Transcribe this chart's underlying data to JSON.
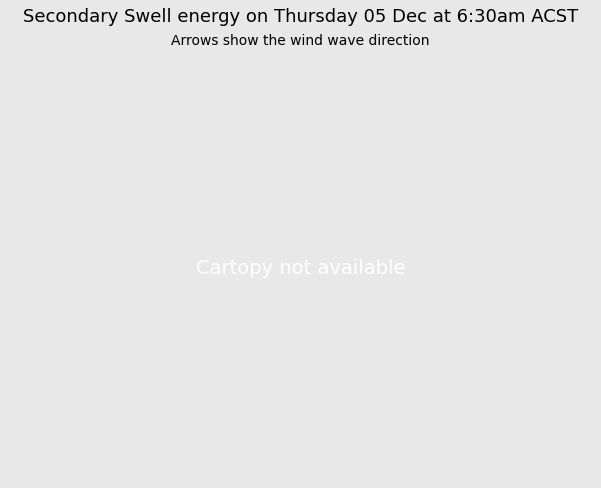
{
  "title": "Secondary Swell energy on Thursday 05 Dec at 6:30am ACST",
  "subtitle": "Arrows show the wind wave direction",
  "title_fontsize": 13,
  "subtitle_fontsize": 10,
  "bg_color": "#000000",
  "title_bg": "#e8e8e8",
  "land_color": "#a0a0a0",
  "border_color": "#000000",
  "ocean_color": "#000000",
  "arrow_color": "#00ffff",
  "swell_color_low": "#0000ff",
  "swell_color_high": "#4444ff",
  "fig_width": 6.01,
  "fig_height": 4.88
}
